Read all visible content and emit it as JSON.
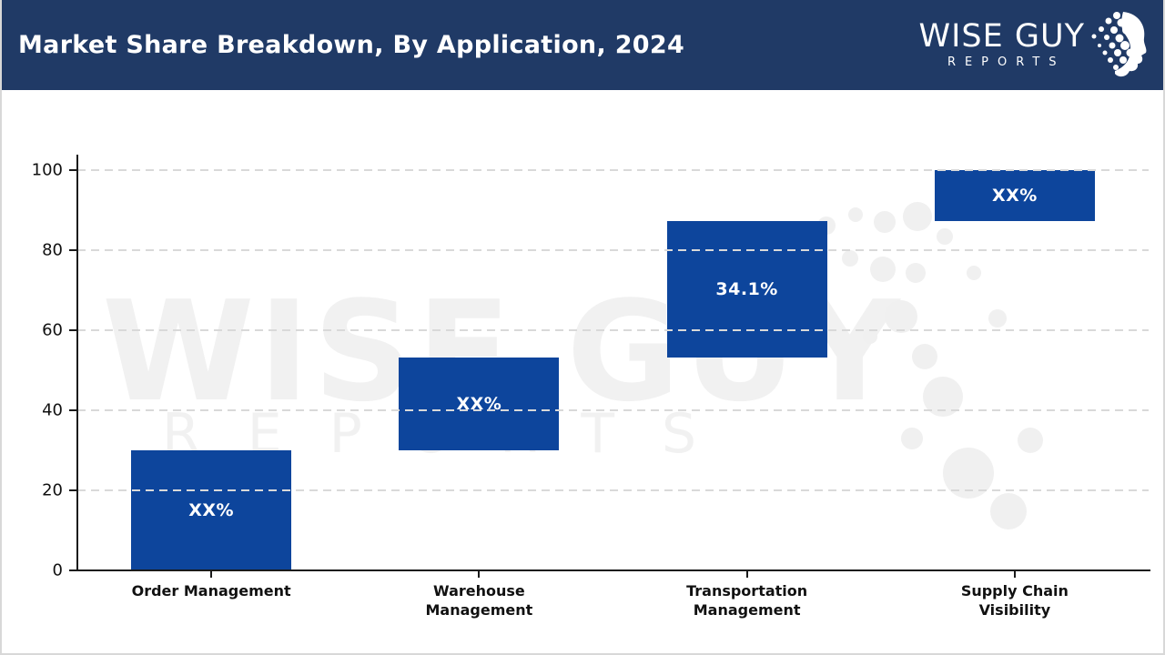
{
  "header": {
    "title": "Market Share Breakdown, By Application, 2024",
    "logo": {
      "line1": "WISE GUY",
      "line2": "REPORTS"
    }
  },
  "watermark": {
    "line1": "WISE GUY",
    "line2": "REPORTS"
  },
  "colors": {
    "header_bg": "#203a66",
    "bar": "#0d459c",
    "grid": "#d9d9d9",
    "axis": "#1a1a1a",
    "watermark": "#f1f1f1"
  },
  "chart_data": {
    "type": "bar",
    "variant": "floating-waterfall",
    "title": "Market Share Breakdown, By Application, 2024",
    "categories": [
      "Order Management",
      "Warehouse Management",
      "Transportation Management",
      "Supply Chain Visibility"
    ],
    "segments": [
      {
        "category": "Order Management",
        "label_lines": [
          "Order Management"
        ],
        "start": 0,
        "end": 30,
        "value_label": "XX%"
      },
      {
        "category": "Warehouse Management",
        "label_lines": [
          "Warehouse",
          "Management"
        ],
        "start": 30,
        "end": 53.2,
        "value_label": "XX%"
      },
      {
        "category": "Transportation Management",
        "label_lines": [
          "Transportation",
          "Management"
        ],
        "start": 53.2,
        "end": 87.3,
        "value_label": "34.1%"
      },
      {
        "category": "Supply Chain Visibility",
        "label_lines": [
          "Supply Chain",
          "Visibility"
        ],
        "start": 87.3,
        "end": 100,
        "value_label": "XX%"
      }
    ],
    "ylim": [
      0,
      100
    ],
    "yticks": [
      0,
      20,
      40,
      60,
      80,
      100
    ],
    "xlabel": "",
    "ylabel": "",
    "grid": "horizontal-dashed",
    "legend": "none"
  }
}
